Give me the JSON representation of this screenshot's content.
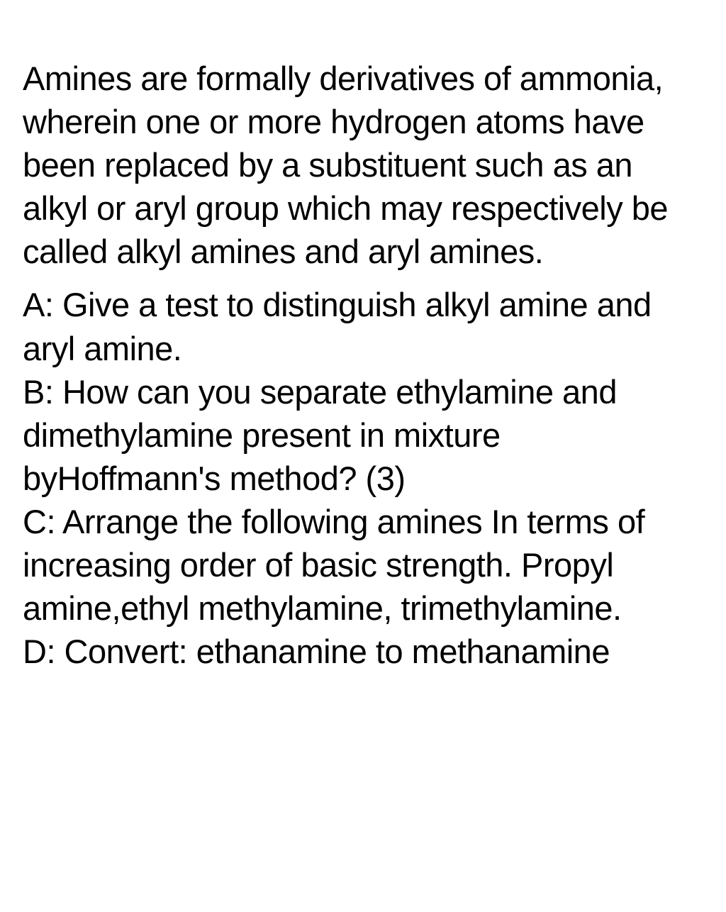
{
  "intro": "Amines are formally derivatives of ammonia, wherein one or more hydrogen atoms have been replaced by a substituent such as an alkyl or aryl group which may respectively be called alkyl amines and aryl amines.",
  "questions": {
    "a": {
      "label": "A:",
      "text": " Give a test to distinguish alkyl amine and aryl amine."
    },
    "b": {
      "label": "B:",
      "text": " How can you separate ethylamine and dimethylamine present in mixture byHoffmann's method? (3)"
    },
    "c": {
      "label": "C:",
      "text": " Arrange the following amines In terms of increasing order of basic strength. Propyl amine,ethyl methylamine, trimethylamine."
    },
    "d": {
      "label": "D:",
      "text": " Convert: ethanamine to methanamine"
    }
  },
  "colors": {
    "text": "#000000",
    "background": "#ffffff"
  },
  "typography": {
    "font_family": "Arial, Helvetica, sans-serif",
    "font_size": 47,
    "line_height": 1.3
  }
}
